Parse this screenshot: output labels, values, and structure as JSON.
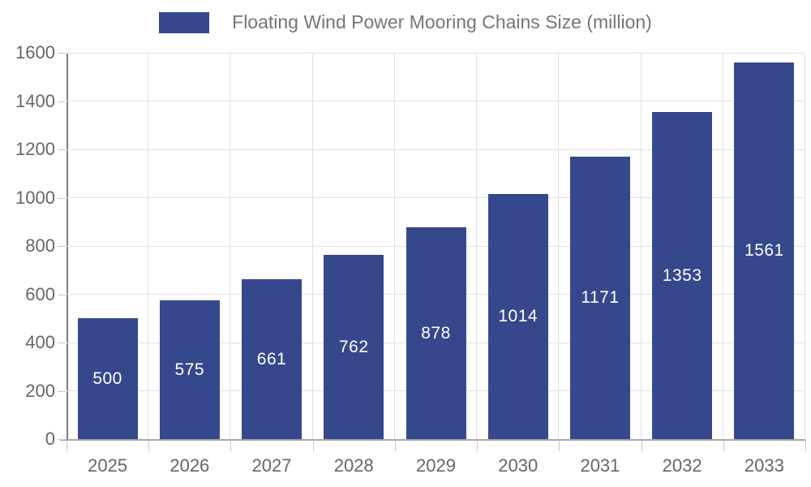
{
  "legend": {
    "label": "Floating Wind Power Mooring Chains Size (million)"
  },
  "chart_data": {
    "type": "bar",
    "title": "Floating Wind Power Mooring Chains Size (million)",
    "series_name": "Floating Wind Power Mooring Chains Size (million)",
    "categories": [
      "2025",
      "2026",
      "2027",
      "2028",
      "2029",
      "2030",
      "2031",
      "2032",
      "2033"
    ],
    "values": [
      500,
      575,
      661,
      762,
      878,
      1014,
      1171,
      1353,
      1561
    ],
    "xlabel": "",
    "ylabel": "",
    "ylim": [
      0,
      1600
    ],
    "yticks": [
      0,
      200,
      400,
      600,
      800,
      1000,
      1200,
      1400,
      1600
    ],
    "grid": true,
    "legend_position": "top",
    "bar_labels_inside": true
  },
  "colors": {
    "bar": "#36488C",
    "bar_label": "#ffffff",
    "grid": "#e0e0e0",
    "tick": "#c9c9c9",
    "x_axis_line": "#a6a6a6",
    "y_axis_line": "#7d7d7d",
    "tick_label": "#666666",
    "title_text": "#757575",
    "background": "#ffffff"
  }
}
